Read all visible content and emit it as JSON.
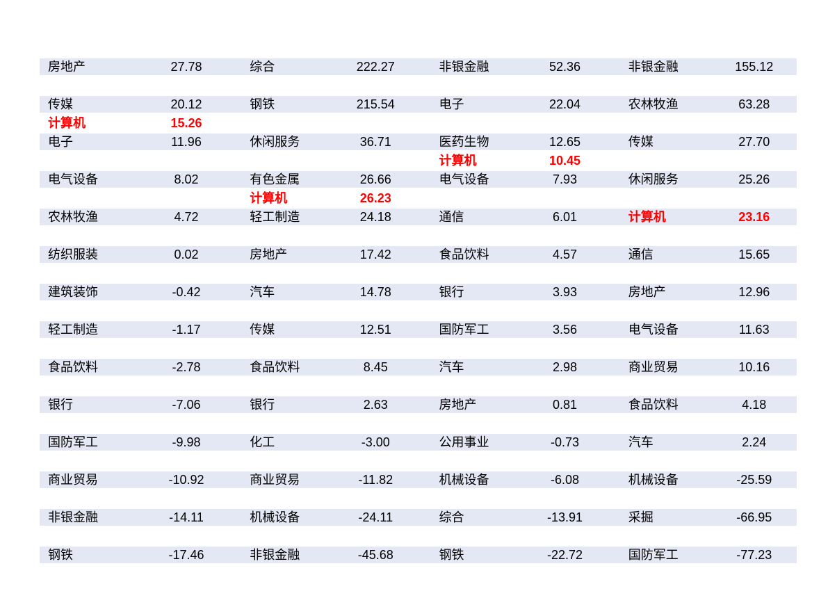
{
  "page": {
    "background_color": "#ffffff"
  },
  "colors": {
    "row_background": "#e4e7f4",
    "text": "#000000",
    "highlight_text": "#ff0000"
  },
  "table": {
    "columns_per_row": 4,
    "rows": [
      {
        "type": "data",
        "cells": [
          {
            "name": "房地产",
            "value": "27.78"
          },
          {
            "name": "综合",
            "value": "222.27"
          },
          {
            "name": "非银金融",
            "value": "52.36"
          },
          {
            "name": "非银金融",
            "value": "155.12"
          }
        ]
      },
      {
        "type": "spacer"
      },
      {
        "type": "data",
        "cells": [
          {
            "name": "传媒",
            "value": "20.12"
          },
          {
            "name": "钢铁",
            "value": "215.54"
          },
          {
            "name": "电子",
            "value": "22.04"
          },
          {
            "name": "农林牧渔",
            "value": "63.28"
          }
        ]
      },
      {
        "type": "highlight",
        "group": 0,
        "name": "计算机",
        "value": "15.26"
      },
      {
        "type": "data",
        "cells": [
          {
            "name": "电子",
            "value": "11.96"
          },
          {
            "name": "休闲服务",
            "value": "36.71"
          },
          {
            "name": "医药生物",
            "value": "12.65"
          },
          {
            "name": "传媒",
            "value": "27.70"
          }
        ]
      },
      {
        "type": "highlight",
        "group": 2,
        "name": "计算机",
        "value": "10.45"
      },
      {
        "type": "data",
        "cells": [
          {
            "name": "电气设备",
            "value": "8.02"
          },
          {
            "name": "有色金属",
            "value": "26.66"
          },
          {
            "name": "电气设备",
            "value": "7.93"
          },
          {
            "name": "休闲服务",
            "value": "25.26"
          }
        ]
      },
      {
        "type": "highlight",
        "group": 1,
        "name": "计算机",
        "value": "26.23"
      },
      {
        "type": "data",
        "cells": [
          {
            "name": "农林牧渔",
            "value": "4.72"
          },
          {
            "name": "轻工制造",
            "value": "24.18"
          },
          {
            "name": "通信",
            "value": "6.01"
          },
          {
            "name": "计算机",
            "value": "23.16",
            "red": true
          }
        ]
      },
      {
        "type": "spacer"
      },
      {
        "type": "data",
        "cells": [
          {
            "name": "纺织服装",
            "value": "0.02"
          },
          {
            "name": "房地产",
            "value": "17.42"
          },
          {
            "name": "食品饮料",
            "value": "4.57"
          },
          {
            "name": "通信",
            "value": "15.65"
          }
        ]
      },
      {
        "type": "spacer"
      },
      {
        "type": "data",
        "cells": [
          {
            "name": "建筑装饰",
            "value": "-0.42"
          },
          {
            "name": "汽车",
            "value": "14.78"
          },
          {
            "name": "银行",
            "value": "3.93"
          },
          {
            "name": "房地产",
            "value": "12.96"
          }
        ]
      },
      {
        "type": "spacer"
      },
      {
        "type": "data",
        "cells": [
          {
            "name": "轻工制造",
            "value": "-1.17"
          },
          {
            "name": "传媒",
            "value": "12.51"
          },
          {
            "name": "国防军工",
            "value": "3.56"
          },
          {
            "name": "电气设备",
            "value": "11.63"
          }
        ]
      },
      {
        "type": "spacer"
      },
      {
        "type": "data",
        "cells": [
          {
            "name": "食品饮料",
            "value": "-2.78"
          },
          {
            "name": "食品饮料",
            "value": "8.45"
          },
          {
            "name": "汽车",
            "value": "2.98"
          },
          {
            "name": "商业贸易",
            "value": "10.16"
          }
        ]
      },
      {
        "type": "spacer"
      },
      {
        "type": "data",
        "cells": [
          {
            "name": "银行",
            "value": "-7.06"
          },
          {
            "name": "银行",
            "value": "2.63"
          },
          {
            "name": "房地产",
            "value": "0.81"
          },
          {
            "name": "食品饮料",
            "value": "4.18"
          }
        ]
      },
      {
        "type": "spacer"
      },
      {
        "type": "data",
        "cells": [
          {
            "name": "国防军工",
            "value": "-9.98"
          },
          {
            "name": "化工",
            "value": "-3.00"
          },
          {
            "name": "公用事业",
            "value": "-0.73"
          },
          {
            "name": "汽车",
            "value": "2.24"
          }
        ]
      },
      {
        "type": "spacer"
      },
      {
        "type": "data",
        "cells": [
          {
            "name": "商业贸易",
            "value": "-10.92"
          },
          {
            "name": "商业贸易",
            "value": "-11.82"
          },
          {
            "name": "机械设备",
            "value": "-6.08"
          },
          {
            "name": "机械设备",
            "value": "-25.59"
          }
        ]
      },
      {
        "type": "spacer"
      },
      {
        "type": "data",
        "cells": [
          {
            "name": "非银金融",
            "value": "-14.11"
          },
          {
            "name": "机械设备",
            "value": "-24.11"
          },
          {
            "name": "综合",
            "value": "-13.91"
          },
          {
            "name": "采掘",
            "value": "-66.95"
          }
        ]
      },
      {
        "type": "spacer"
      },
      {
        "type": "data",
        "cells": [
          {
            "name": "钢铁",
            "value": "-17.46"
          },
          {
            "name": "非银金融",
            "value": "-45.68"
          },
          {
            "name": "钢铁",
            "value": "-22.72"
          },
          {
            "name": "国防军工",
            "value": "-77.23"
          }
        ]
      }
    ]
  }
}
